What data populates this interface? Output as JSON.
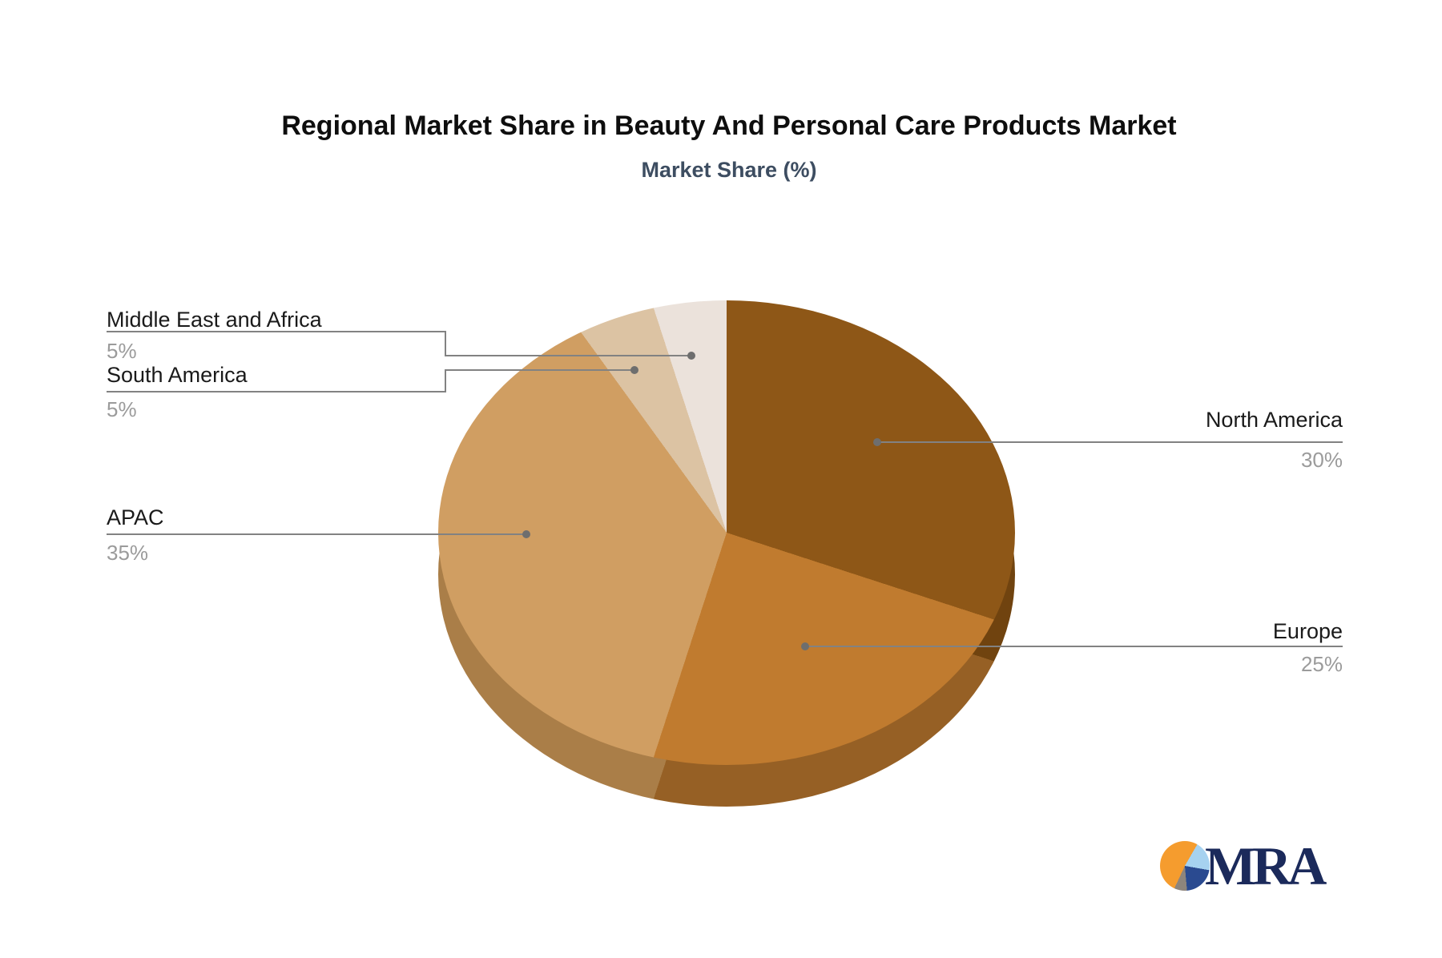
{
  "title": "Regional Market Share in Beauty And Personal Care Products Market",
  "subtitle": "Market Share (%)",
  "chart_data": {
    "type": "pie",
    "style": "3d-pie",
    "title": "Regional Market Share in Beauty And Personal Care Products Market",
    "subtitle": "Market Share (%)",
    "unit": "%",
    "direction": "clockwise",
    "start_angle": "12-oclock",
    "categories": [
      "North America",
      "Europe",
      "APAC",
      "South America",
      "Middle East and Africa"
    ],
    "values": [
      30,
      25,
      35,
      5,
      5
    ],
    "value_labels": [
      "30%",
      "25%",
      "35%",
      "5%",
      "5%"
    ],
    "colors": [
      "#8E5717",
      "#C07B2F",
      "#D09E62",
      "#DCC3A3",
      "#EBE2DB"
    ],
    "side_colors": [
      "#70430F",
      "#966025",
      "#AA7E48",
      "#B79C7C",
      "#C6B9AE"
    ],
    "label_color": "#1a1a1a",
    "value_color": "#9b9b9b",
    "callout_line_color": "#828282",
    "legend": "callout-labels"
  },
  "logo": {
    "text": "MRA",
    "text_color": "#1B2A5B",
    "icon_colors": {
      "light_blue": "#A6D2F0",
      "blue": "#2A4A90",
      "gray": "#8E857C",
      "orange": "#F59C2E"
    }
  }
}
